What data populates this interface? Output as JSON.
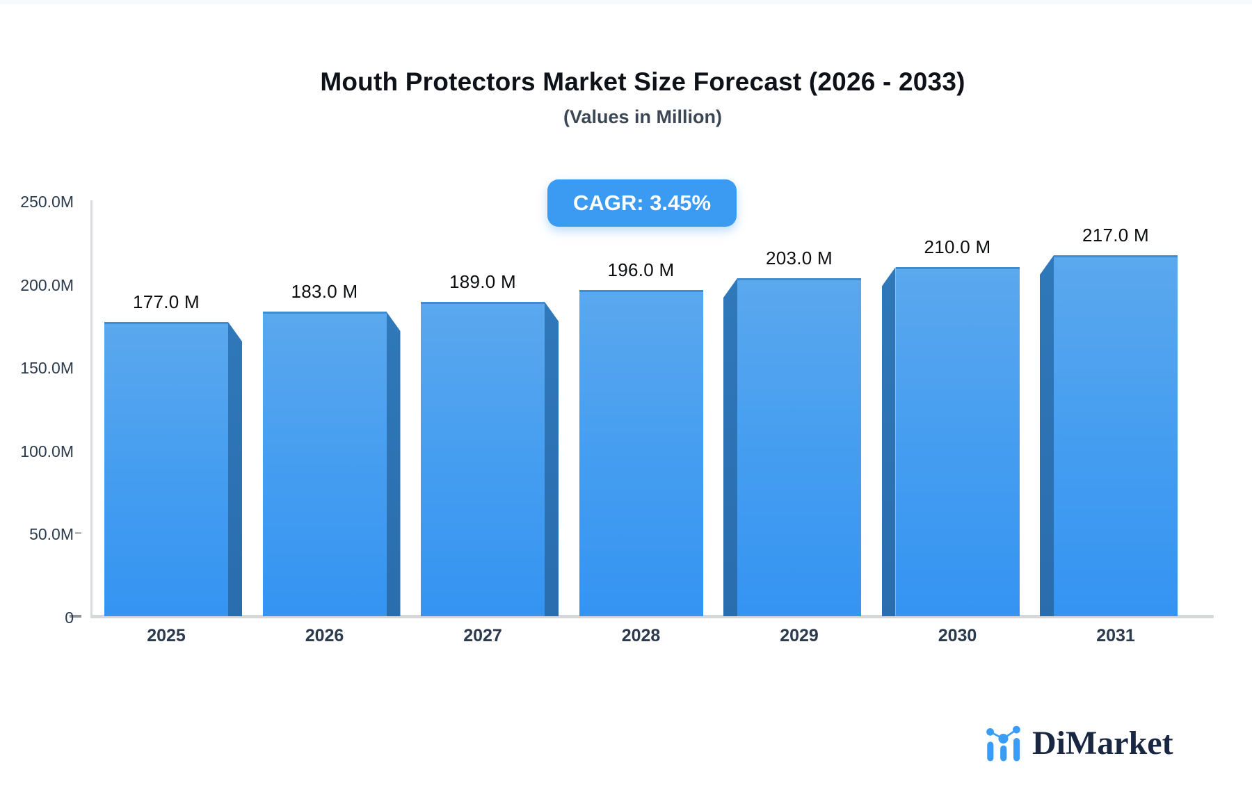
{
  "header": {
    "title": "Mouth Protectors Market Size Forecast (2026 - 2033)",
    "subtitle": "(Values in Million)",
    "cagr_label": "CAGR: 3.45%"
  },
  "chart_data": {
    "type": "bar",
    "title": "Mouth Protectors Market Size Forecast (2026 - 2033)",
    "subtitle": "(Values in Million)",
    "categories": [
      "2025",
      "2026",
      "2027",
      "2028",
      "2029",
      "2030",
      "2031"
    ],
    "values": [
      177.0,
      183.0,
      189.0,
      196.0,
      203.0,
      210.0,
      217.0
    ],
    "value_labels": [
      "177.0 M",
      "183.0 M",
      "189.0 M",
      "196.0 M",
      "203.0 M",
      "210.0 M",
      "217.0 M"
    ],
    "unit": "Million",
    "ylim": [
      0,
      250
    ],
    "y_ticks": [
      {
        "label": "250.0M",
        "value": 250
      },
      {
        "label": "200.0M",
        "value": 200
      },
      {
        "label": "150.0M",
        "value": 150
      },
      {
        "label": "100.0M",
        "value": 100
      },
      {
        "label": "50.0M",
        "value": 50
      },
      {
        "label": "0",
        "value": 0
      }
    ],
    "grid": false,
    "legend": false,
    "annotation": "CAGR: 3.45%"
  },
  "colors": {
    "bar_face": "#459df0",
    "bar_side": "#2d72b4",
    "badge_background": "#3b9af2",
    "badge_text": "#ffffff",
    "axis": "#d9dbdf",
    "label_text": "#2c3a4d",
    "title_text": "#0e1117",
    "logo_text": "#1a2742",
    "logo_icon": "#3b9cf5"
  },
  "logo": {
    "text": "DiMarket"
  }
}
